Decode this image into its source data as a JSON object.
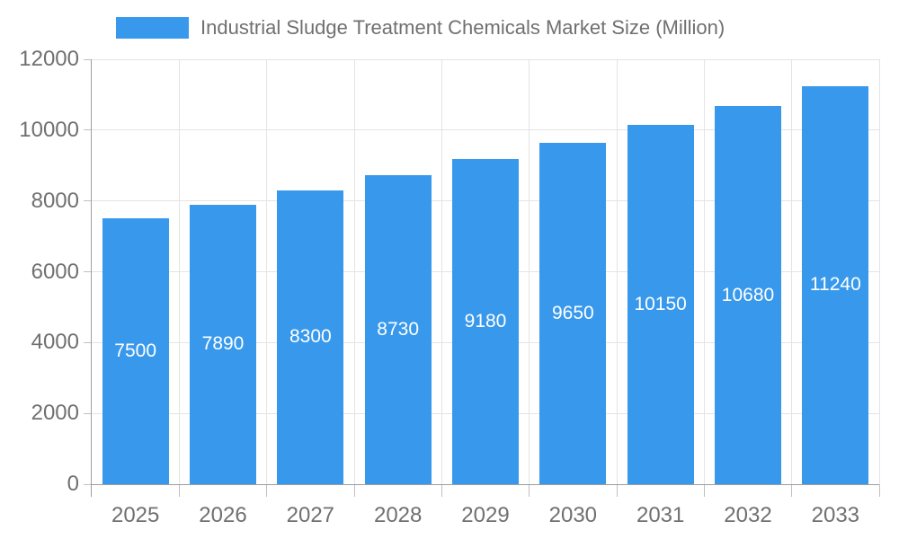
{
  "legend": {
    "label": "Industrial Sludge Treatment Chemicals Market Size (Million)"
  },
  "chart_data": {
    "type": "bar",
    "title": "Industrial Sludge Treatment Chemicals Market Size (Million)",
    "categories": [
      "2025",
      "2026",
      "2027",
      "2028",
      "2029",
      "2030",
      "2031",
      "2032",
      "2033"
    ],
    "values": [
      7500,
      7890,
      8300,
      8730,
      9180,
      9650,
      10150,
      10680,
      11240
    ],
    "value_labels": [
      "7500",
      "7890",
      "8300",
      "8730",
      "9180",
      "9650",
      "10150",
      "10680",
      "11240"
    ],
    "xlabel": "",
    "ylabel": "",
    "ylim": [
      0,
      12000
    ],
    "yticks": [
      0,
      2000,
      4000,
      6000,
      8000,
      10000,
      12000
    ],
    "grid": true,
    "legend_position": "top",
    "value_label_position": "inside-center"
  },
  "colors": {
    "bar": "#3899EC",
    "grid": "#E4E4E4",
    "tick": "#C0C0C0",
    "axis": "#9E9E9E",
    "text": "#707070",
    "value_label": "#FFFFFF",
    "background": "#FFFFFF"
  }
}
